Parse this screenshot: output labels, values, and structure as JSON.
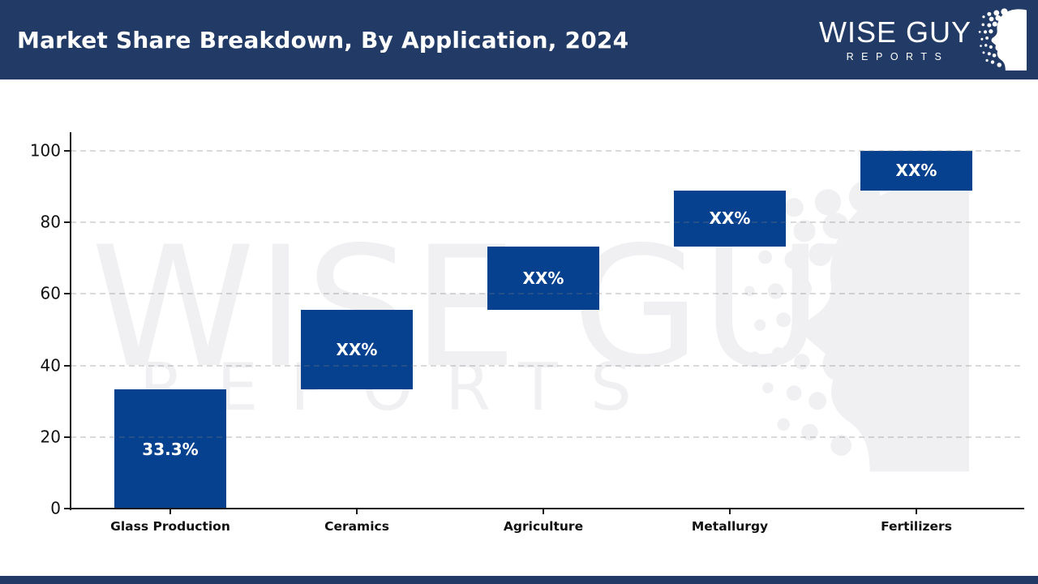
{
  "header": {
    "title": "Market Share Breakdown, By Application, 2024",
    "logo": {
      "wordmark": "WISE GUY",
      "subtext": "REPORTS"
    }
  },
  "watermark": {
    "wordmark": "WISE GUY",
    "subtext": "REPORTS"
  },
  "colors": {
    "header_bg": "#213a66",
    "footer_bg": "#213a66",
    "bar": "#05418f",
    "bar_label_text": "#ffffff",
    "axis": "#1a1a1a",
    "gridline": "#e0e0e0",
    "watermark": "#f0f0f3"
  },
  "chart_data": {
    "type": "bar",
    "subtype": "waterfall",
    "title": "Market Share Breakdown, By Application, 2024",
    "categories": [
      "Glass Production",
      "Ceramics",
      "Agriculture",
      "Metallurgy",
      "Fertilizers"
    ],
    "segments": [
      {
        "category": "Glass Production",
        "start": 0,
        "end": 33.3,
        "label": "33.3%"
      },
      {
        "category": "Ceramics",
        "start": 33.3,
        "end": 55.6,
        "label": "XX%"
      },
      {
        "category": "Agriculture",
        "start": 55.6,
        "end": 73.3,
        "label": "XX%"
      },
      {
        "category": "Metallurgy",
        "start": 73.3,
        "end": 88.9,
        "label": "XX%"
      },
      {
        "category": "Fertilizers",
        "start": 88.9,
        "end": 100,
        "label": "XX%"
      }
    ],
    "xlabel": "",
    "ylabel": "",
    "ylim": [
      0,
      105
    ],
    "yticks": [
      0,
      20,
      40,
      60,
      80,
      100
    ],
    "grid": "horizontal-dashed",
    "legend": "none"
  }
}
